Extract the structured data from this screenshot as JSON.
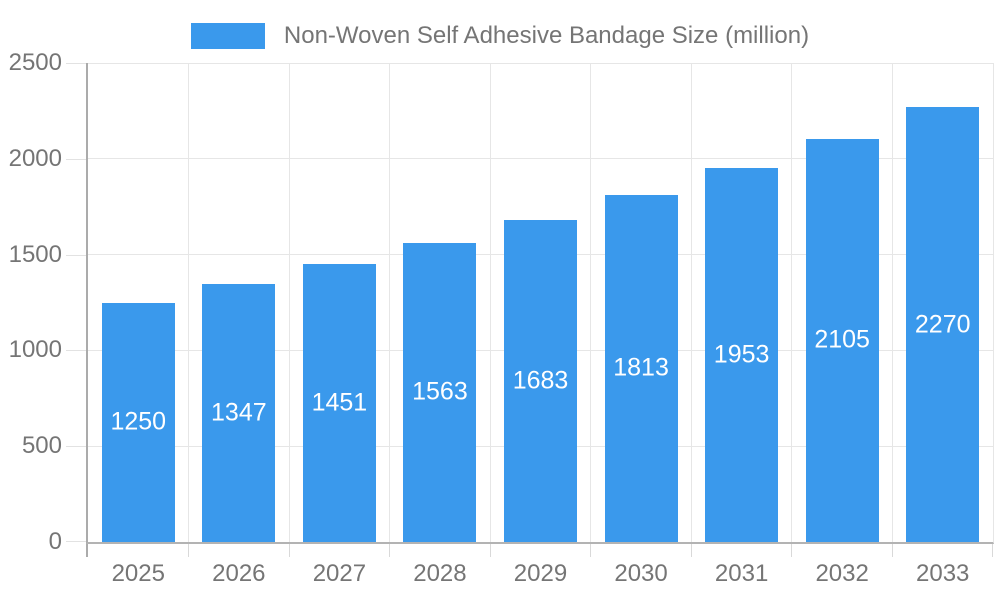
{
  "chart_data": {
    "type": "bar",
    "legend": "Non-Woven Self Adhesive Bandage Size (million)",
    "legend_position": "top",
    "categories": [
      "2025",
      "2026",
      "2027",
      "2028",
      "2029",
      "2030",
      "2031",
      "2032",
      "2033"
    ],
    "series": [
      {
        "name": "Non-Woven Self Adhesive Bandage Size (million)",
        "values": [
          1250,
          1347,
          1451,
          1563,
          1683,
          1813,
          1953,
          2105,
          2270
        ]
      }
    ],
    "title": "",
    "xlabel": "",
    "ylabel": "",
    "ylim": [
      0,
      2500
    ],
    "yticks": [
      0,
      500,
      1000,
      1500,
      2000,
      2500
    ],
    "grid": true,
    "bar_value_labels_shown": true,
    "colors": {
      "bar": "#3a99ec",
      "gridline": "#e6e6e6",
      "axis_line": "#ababab",
      "tick_mark": "#d9d9d9",
      "axis_text": "#757575",
      "bar_label_text": "#ffffff",
      "background": "#ffffff"
    }
  }
}
